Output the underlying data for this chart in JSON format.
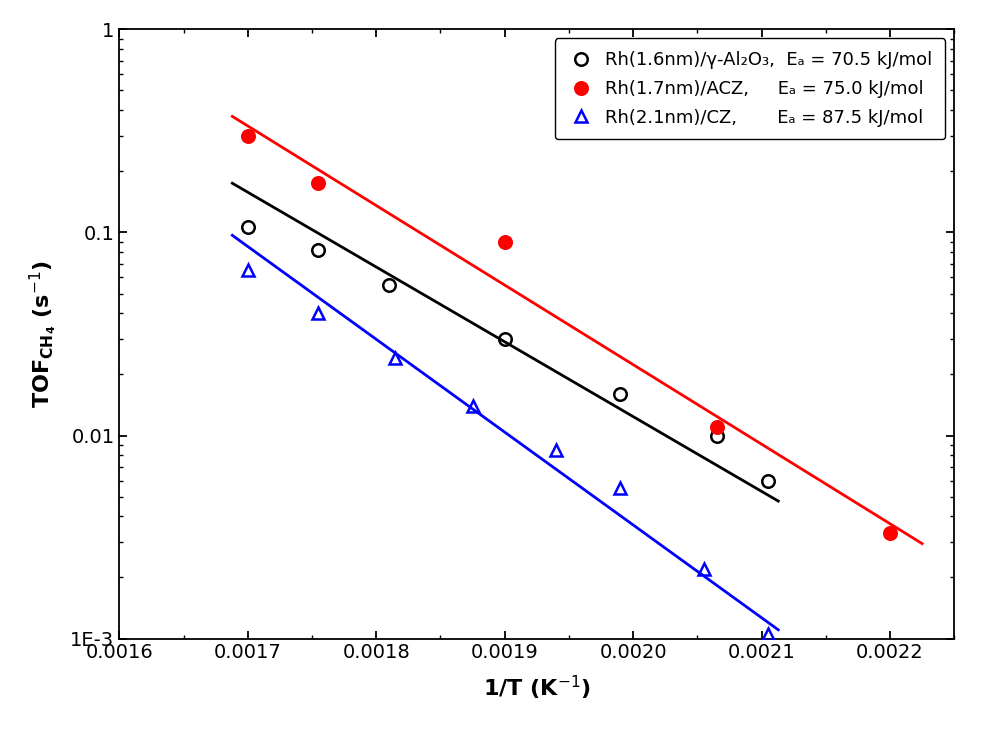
{
  "title": "",
  "xlabel": "1/T (K⁻¹)",
  "xlim": [
    0.0016,
    0.00225
  ],
  "ylim": [
    0.001,
    1.0
  ],
  "xticks": [
    0.0016,
    0.0017,
    0.0018,
    0.0019,
    0.002,
    0.0021,
    0.0022
  ],
  "xtick_labels": [
    "0.0016",
    "0.0017",
    "0.0018",
    "0.0019",
    "0.0020",
    "0.0021",
    "0.0022"
  ],
  "series": [
    {
      "label_text": "Rh(1.6nm)/γ-Al₂O₃,  Eₐ = 70.5 kJ/mol",
      "color": "black",
      "marker": "o",
      "filled": false,
      "x_data": [
        0.0017,
        0.001755,
        0.00181,
        0.0019,
        0.00199,
        0.002065,
        0.002105
      ],
      "y_data": [
        0.106,
        0.082,
        0.055,
        0.03,
        0.016,
        0.01,
        0.006
      ],
      "Ea_kJ": 70.5,
      "line_x_start": 0.001688,
      "line_x_end": 0.002113
    },
    {
      "label_text": "Rh(1.7nm)/ACZ,     Eₐ = 75.0 kJ/mol",
      "color": "red",
      "marker": "o",
      "filled": true,
      "x_data": [
        0.0017,
        0.001755,
        0.0019,
        0.002065,
        0.0022
      ],
      "y_data": [
        0.3,
        0.175,
        0.09,
        0.011,
        0.0033
      ],
      "Ea_kJ": 75.0,
      "line_x_start": 0.001688,
      "line_x_end": 0.002225
    },
    {
      "label_text": "Rh(2.1nm)/CZ,       Eₐ = 87.5 kJ/mol",
      "color": "blue",
      "marker": "^",
      "filled": false,
      "x_data": [
        0.0017,
        0.001755,
        0.001815,
        0.001875,
        0.00194,
        0.00199,
        0.002055,
        0.002105
      ],
      "y_data": [
        0.065,
        0.04,
        0.024,
        0.014,
        0.0085,
        0.0055,
        0.0022,
        0.00105
      ],
      "Ea_kJ": 87.5,
      "line_x_start": 0.001688,
      "line_x_end": 0.002113
    }
  ],
  "legend_loc": "upper right",
  "background_color": "#ffffff",
  "figsize": [
    9.94,
    7.34
  ],
  "dpi": 100
}
